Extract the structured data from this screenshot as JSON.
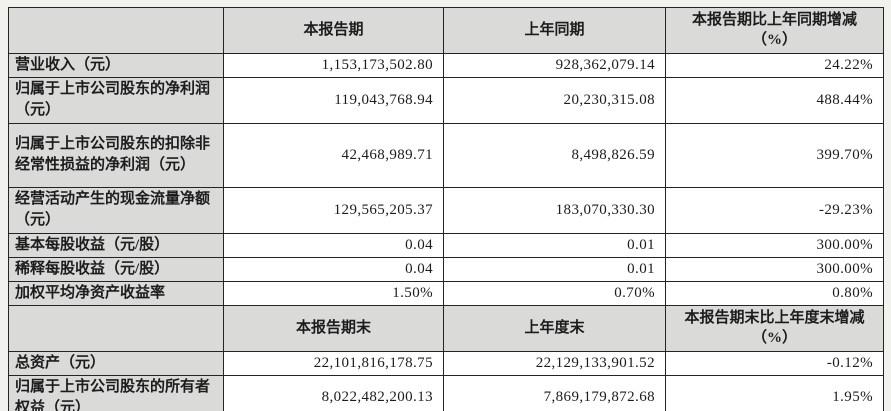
{
  "table": {
    "section1": {
      "col_headers": {
        "current": "本报告期",
        "prior": "上年同期",
        "change_line1": "本报告期比上年同期增减",
        "change_line2": "（%）"
      },
      "rows": [
        {
          "label": "营业收入（元）",
          "current": "1,153,173,502.80",
          "prior": "928,362,079.14",
          "change": "24.22%"
        },
        {
          "label": "归属于上市公司股东的净利润（元）",
          "current": "119,043,768.94",
          "prior": "20,230,315.08",
          "change": "488.44%"
        },
        {
          "label": "归属于上市公司股东的扣除非经常性损益的净利润（元）",
          "current": "42,468,989.71",
          "prior": "8,498,826.59",
          "change": "399.70%"
        },
        {
          "label": "经营活动产生的现金流量净额（元）",
          "current": "129,565,205.37",
          "prior": "183,070,330.30",
          "change": "-29.23%"
        },
        {
          "label": "基本每股收益（元/股）",
          "current": "0.04",
          "prior": "0.01",
          "change": "300.00%"
        },
        {
          "label": "稀释每股收益（元/股）",
          "current": "0.04",
          "prior": "0.01",
          "change": "300.00%"
        },
        {
          "label": "加权平均净资产收益率",
          "current": "1.50%",
          "prior": "0.70%",
          "change": "0.80%"
        }
      ]
    },
    "section2": {
      "col_headers": {
        "current": "本报告期末",
        "prior": "上年度末",
        "change_line1": "本报告期末比上年度末增减",
        "change_line2": "（%）"
      },
      "rows": [
        {
          "label": "总资产（元）",
          "current": "22,101,816,178.75",
          "prior": "22,129,133,901.52",
          "change": "-0.12%"
        },
        {
          "label": "归属于上市公司股东的所有者权益（元）",
          "current": "8,022,482,200.13",
          "prior": "7,869,179,872.68",
          "change": "1.95%"
        }
      ]
    },
    "colors": {
      "page_background": "#f1f1ee",
      "header_cell_background": "#dadad8",
      "label_cell_background": "#dadad8",
      "value_cell_background": "#ffffff",
      "border": "#242424",
      "text": "#1c1c1c"
    }
  }
}
